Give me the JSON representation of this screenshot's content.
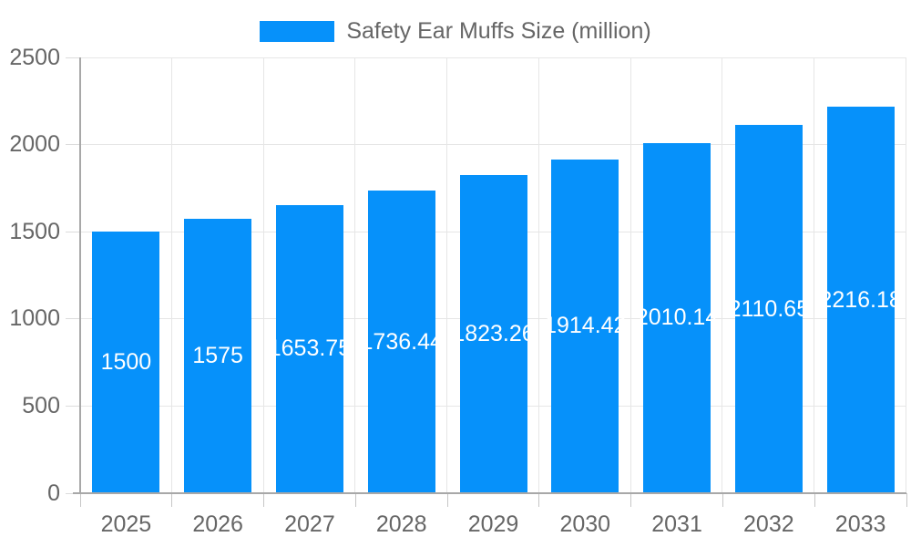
{
  "legend": {
    "label": "Safety Ear Muffs Size (million)"
  },
  "colors": {
    "bar": "#0691fa",
    "bar_label": "#ffffff",
    "axis_label": "#666666",
    "grid": "#e6e6e6",
    "axis_line": "#a8a8a8",
    "tick_x": "#c6c6c6",
    "tick_y": "#dcdcdc",
    "background": "#ffffff"
  },
  "chart_data": {
    "type": "bar",
    "title": "Safety Ear Muffs Size (million)",
    "categories": [
      "2025",
      "2026",
      "2027",
      "2028",
      "2029",
      "2030",
      "2031",
      "2032",
      "2033"
    ],
    "values": [
      1500,
      1575,
      1653.75,
      1736.44,
      1823.26,
      1914.42,
      2010.14,
      2110.65,
      2216.18
    ],
    "bar_labels": [
      "1500",
      "1575",
      "1653.75",
      "1736.44",
      "1823.26",
      "1914.42",
      "2010.14",
      "2110.65",
      "2216.18"
    ],
    "yticks": [
      0,
      500,
      1000,
      1500,
      2000,
      2500
    ],
    "ytick_labels": [
      "0",
      "500",
      "1000",
      "1500",
      "2000",
      "2500"
    ],
    "ylim": [
      0,
      2500
    ],
    "xlabel": "",
    "ylabel": "",
    "grid": true,
    "legend_position": "top",
    "bar_label_position": "center"
  }
}
